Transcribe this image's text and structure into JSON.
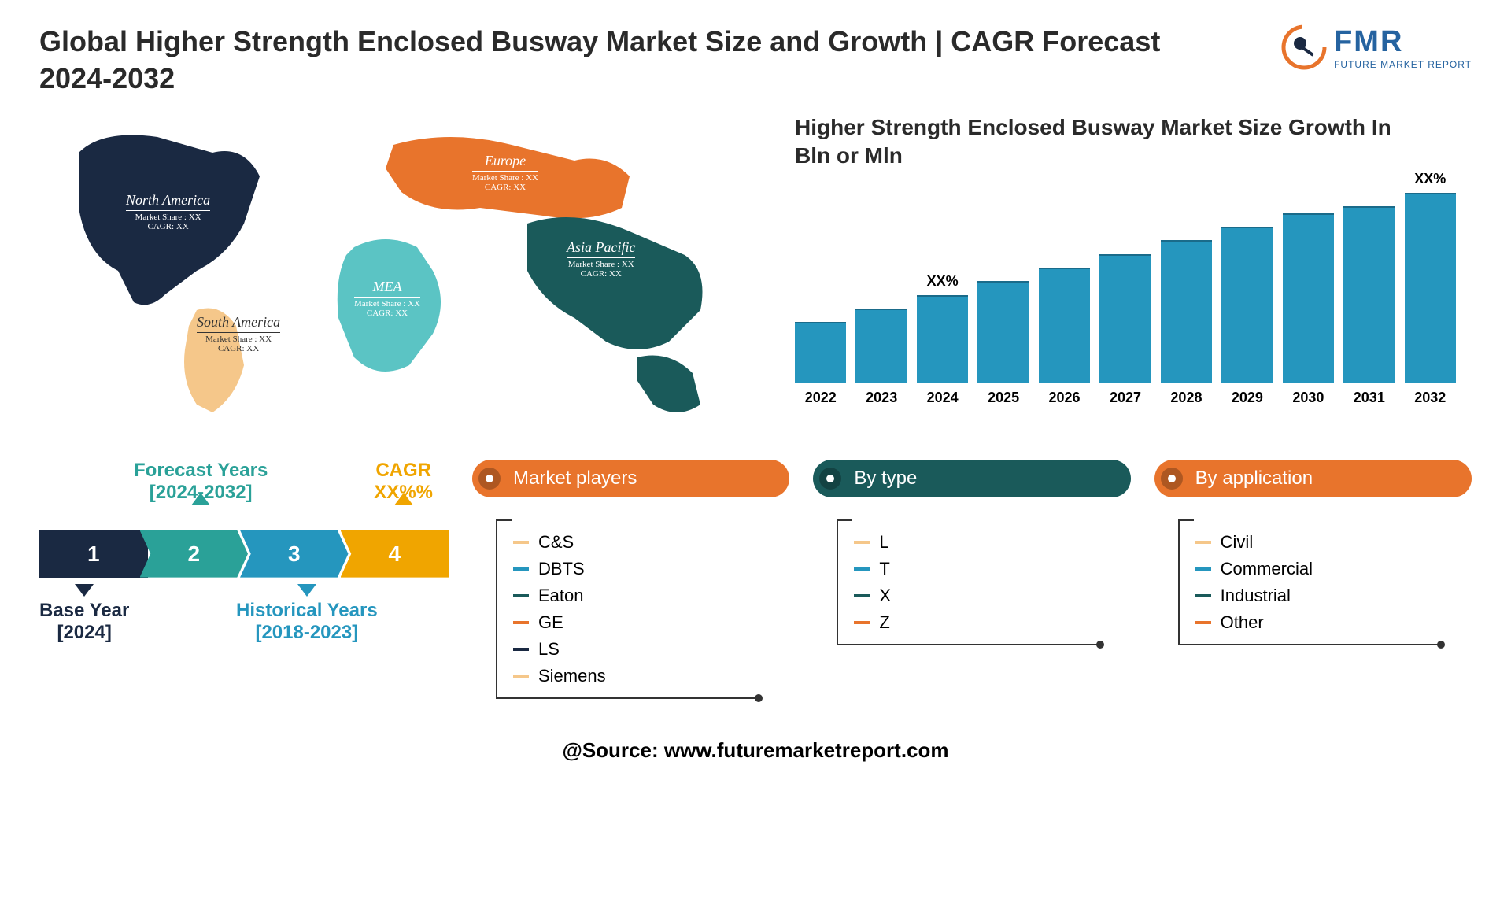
{
  "title": "Global Higher Strength Enclosed Busway Market Size and Growth | CAGR Forecast 2024-2032",
  "logo": {
    "main": "FMR",
    "sub": "FUTURE MARKET REPORT"
  },
  "map": {
    "regions": [
      {
        "name": "North America",
        "share": "Market Share : XX",
        "cagr": "CAGR: XX",
        "color": "#1a2942"
      },
      {
        "name": "South America",
        "share": "Market Share : XX",
        "cagr": "CAGR: XX",
        "color": "#f5c78a"
      },
      {
        "name": "Europe",
        "share": "Market Share : XX",
        "cagr": "CAGR: XX",
        "color": "#e8742c"
      },
      {
        "name": "MEA",
        "share": "Market Share : XX",
        "cagr": "CAGR: XX",
        "color": "#5bc4c4"
      },
      {
        "name": "Asia Pacific",
        "share": "Market Share : XX",
        "cagr": "CAGR: XX",
        "color": "#1a5a5a"
      }
    ]
  },
  "chart": {
    "title": "Higher Strength Enclosed Busway Market Size Growth In\nBln or Mln",
    "type": "bar",
    "bar_color": "#2596be",
    "categories": [
      "2022",
      "2023",
      "2024",
      "2025",
      "2026",
      "2027",
      "2028",
      "2029",
      "2030",
      "2031",
      "2032"
    ],
    "values": [
      90,
      110,
      130,
      150,
      170,
      190,
      210,
      230,
      250,
      260,
      280
    ],
    "ylim": [
      0,
      300
    ],
    "annotations": [
      {
        "index": 2,
        "text": "XX%"
      },
      {
        "index": 10,
        "text": "XX%"
      }
    ],
    "label_fontsize": 18
  },
  "timeline": {
    "segments": [
      "1",
      "2",
      "3",
      "4"
    ],
    "colors": [
      "#1a2942",
      "#2aa198",
      "#2596be",
      "#f0a500"
    ],
    "forecast_label": "Forecast Years",
    "forecast_years": "[2024-2032]",
    "cagr_label": "CAGR",
    "cagr_value": "XX%%",
    "base_label": "Base Year",
    "base_year": "[2024]",
    "hist_label": "Historical Years",
    "hist_years": "[2018-2023]"
  },
  "categories": [
    {
      "header": "Market players",
      "header_color": "orange",
      "items": [
        {
          "label": "C&S",
          "bullet_color": "#f5c78a"
        },
        {
          "label": "DBTS",
          "bullet_color": "#2596be"
        },
        {
          "label": "Eaton",
          "bullet_color": "#1a5a5a"
        },
        {
          "label": "GE",
          "bullet_color": "#e8742c"
        },
        {
          "label": "LS",
          "bullet_color": "#1a2942"
        },
        {
          "label": "Siemens",
          "bullet_color": "#f5c78a"
        }
      ]
    },
    {
      "header": "By type",
      "header_color": "teal",
      "items": [
        {
          "label": "L",
          "bullet_color": "#f5c78a"
        },
        {
          "label": "T",
          "bullet_color": "#2596be"
        },
        {
          "label": "X",
          "bullet_color": "#1a5a5a"
        },
        {
          "label": "Z",
          "bullet_color": "#e8742c"
        }
      ]
    },
    {
      "header": "By application",
      "header_color": "orange",
      "items": [
        {
          "label": "Civil",
          "bullet_color": "#f5c78a"
        },
        {
          "label": "Commercial",
          "bullet_color": "#2596be"
        },
        {
          "label": "Industrial",
          "bullet_color": "#1a5a5a"
        },
        {
          "label": "Other",
          "bullet_color": "#e8742c"
        }
      ]
    }
  ],
  "source": "@Source: www.futuremarketreport.com"
}
